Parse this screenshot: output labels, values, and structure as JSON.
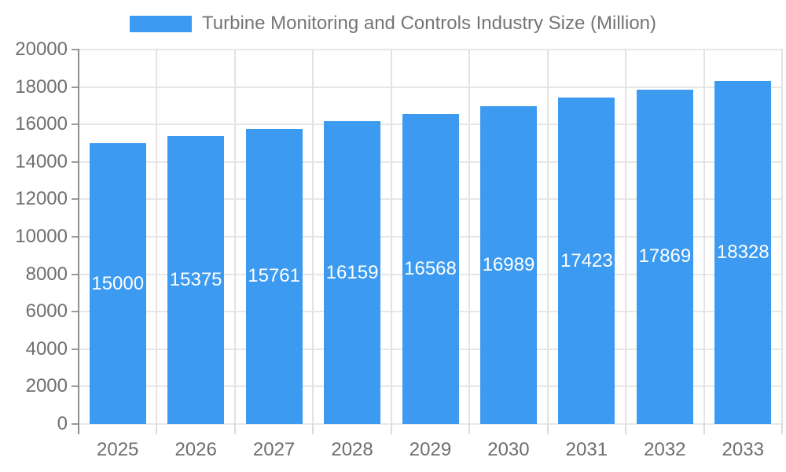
{
  "chart_data": {
    "type": "bar",
    "title": "Turbine Monitoring and Controls Industry Size (Million)",
    "categories": [
      "2025",
      "2026",
      "2027",
      "2028",
      "2029",
      "2030",
      "2031",
      "2032",
      "2033"
    ],
    "values": [
      15000,
      15375,
      15761,
      16159,
      16568,
      16989,
      17423,
      17869,
      18328
    ],
    "xlabel": "",
    "ylabel": "",
    "ylim": [
      0,
      20000
    ],
    "ytick_step": 2000,
    "grid": true,
    "legend_position": "top",
    "bar_color": "#3C9BF0",
    "bar_label_color": "#ffffff",
    "axis_label_color": "#6E6E6E",
    "legend_text_color": "#757575",
    "gridline_color": "#E7E7E7",
    "axis_line_color": "#8F8F8F"
  }
}
